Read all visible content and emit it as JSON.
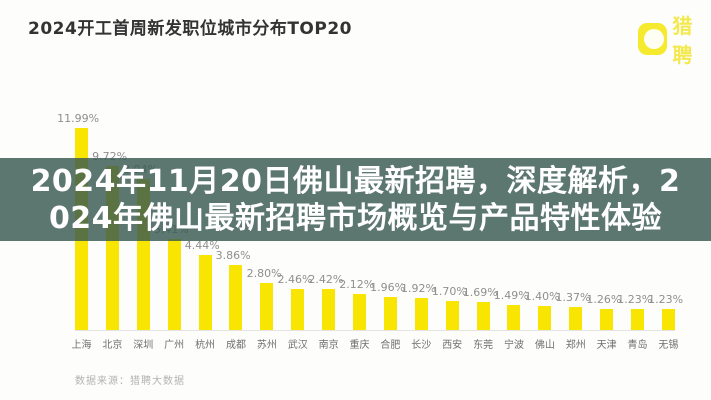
{
  "header": {
    "title": "2024开工首周新发职位城市分布TOP20",
    "brand": "猎聘",
    "brand_color": "#f6ea2e"
  },
  "overlay": {
    "line1": "2024年11月20日佛山最新招聘，深度解析，2",
    "line2": "024年佛山最新招聘市场概览与产品特性体验",
    "full_text": "2024年11月20日佛山最新招聘，深度解析，2024年佛山最新招聘市场概览与产品特性体验",
    "band_color": "#3a5850",
    "text_color": "#ffffff"
  },
  "footer": {
    "source": "数据来源：猎聘大数据"
  },
  "chart_data": {
    "type": "bar",
    "title": "2024开工首周新发职位城市分布TOP20",
    "categories": [
      "上海",
      "北京",
      "深圳",
      "广州",
      "杭州",
      "成都",
      "苏州",
      "武汉",
      "南京",
      "重庆",
      "合肥",
      "长沙",
      "西安",
      "东莞",
      "宁波",
      "佛山",
      "郑州",
      "天津",
      "青岛",
      "无锡"
    ],
    "values": [
      11.99,
      9.72,
      8.94,
      5.41,
      4.44,
      3.86,
      2.8,
      2.46,
      2.42,
      2.12,
      1.96,
      1.92,
      1.7,
      1.69,
      1.49,
      1.4,
      1.37,
      1.26,
      1.23,
      1.23
    ],
    "unit": "%",
    "xlabel": "",
    "ylabel": "",
    "ylim": [
      0,
      12.5
    ],
    "grid": false,
    "legend_position": "none",
    "bar_color": "#f8e602",
    "value_label_color": "#8f8f8f",
    "category_label_color": "#6f6f6f"
  }
}
